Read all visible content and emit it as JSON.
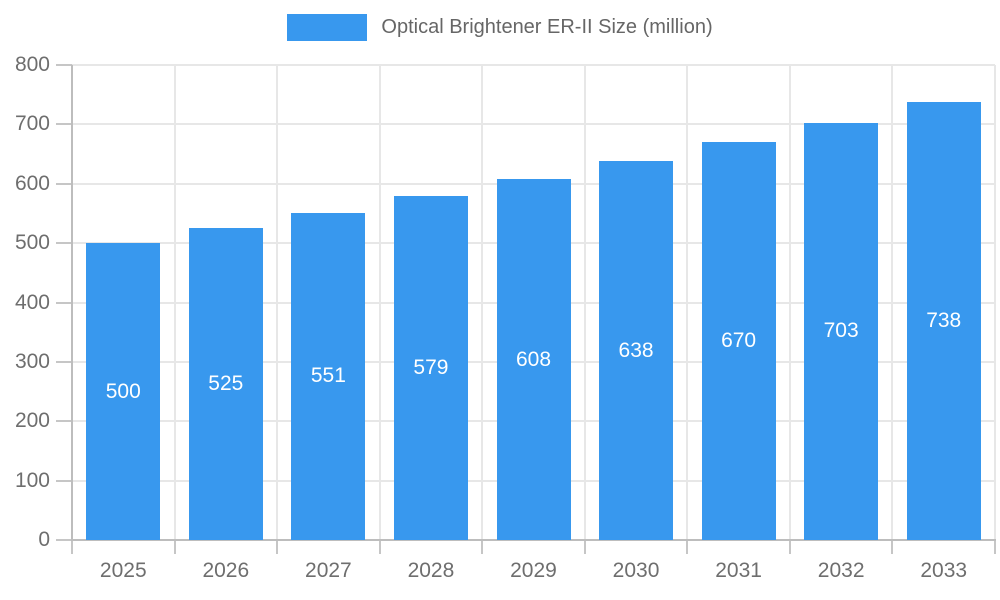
{
  "legend": {
    "label": "Optical Brightener ER-II Size (million)"
  },
  "chart_data": {
    "type": "bar",
    "title": "Optical Brightener ER-II Size (million)",
    "categories": [
      "2025",
      "2026",
      "2027",
      "2028",
      "2029",
      "2030",
      "2031",
      "2032",
      "2033"
    ],
    "values": [
      500,
      525,
      551,
      579,
      608,
      638,
      670,
      703,
      738
    ],
    "xlabel": "",
    "ylabel": "",
    "ylim": [
      0,
      800
    ],
    "ytick_step": 100,
    "grid": true,
    "legend_position": "top",
    "bar_color": "#3898EE",
    "value_label_color": "#ffffff",
    "axis_text_color": "#6e6e6e"
  }
}
